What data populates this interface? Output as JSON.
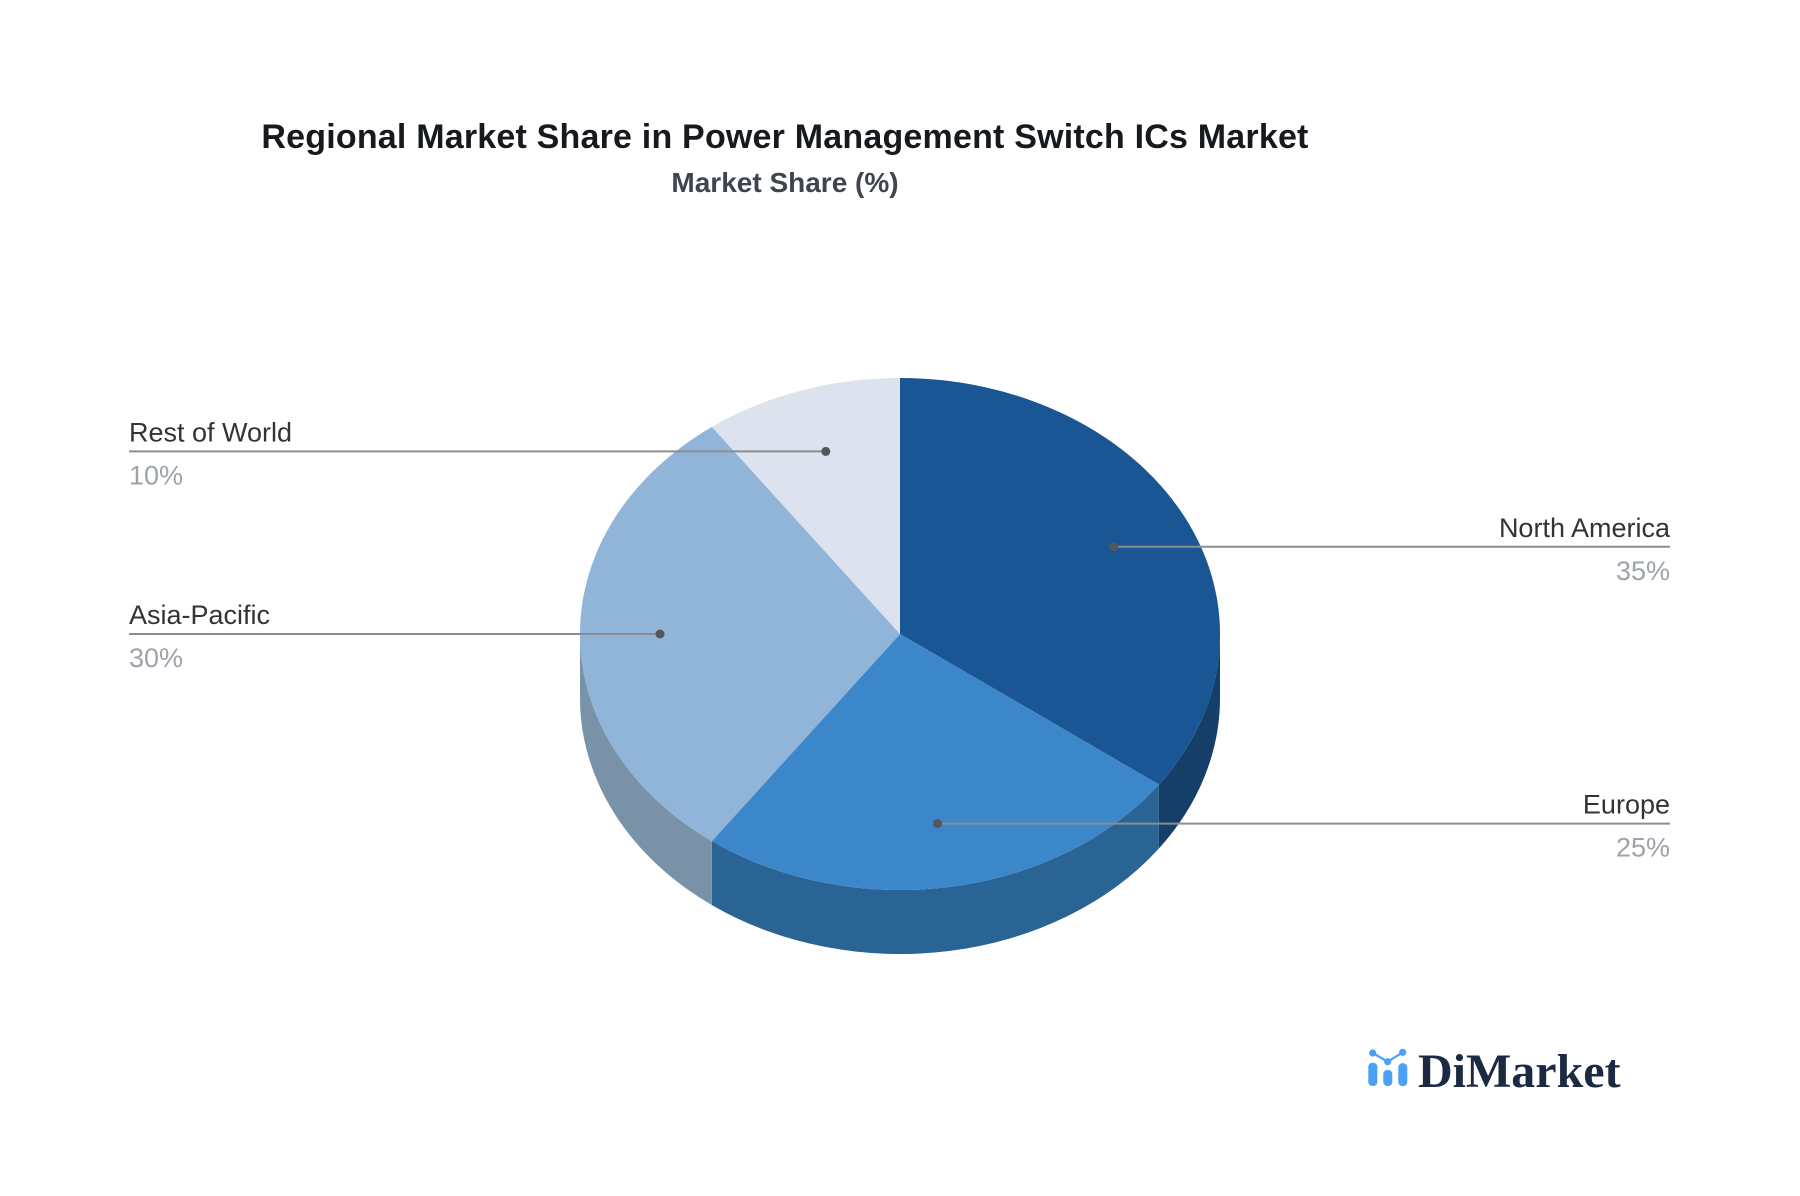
{
  "title": "Regional Market Share in Power Management Switch ICs Market",
  "subtitle": "Market Share (%)",
  "chart_data": {
    "type": "pie",
    "style": "3d",
    "start_angle_deg": 0,
    "direction": "clockwise",
    "unit": "%",
    "total": 100,
    "slices": [
      {
        "label": "North America",
        "value": 35,
        "display": "35%",
        "color": "#1B5694",
        "side_color": "#153F68",
        "label_side": "right"
      },
      {
        "label": "Europe",
        "value": 25,
        "display": "25%",
        "color": "#3B87CA",
        "side_color": "#2A6495",
        "label_side": "right"
      },
      {
        "label": "Asia-Pacific",
        "value": 30,
        "display": "30%",
        "color": "#91B4D9",
        "side_color": "#7A92A8",
        "label_side": "left"
      },
      {
        "label": "Rest of World",
        "value": 10,
        "display": "10%",
        "color": "#DDE3EE",
        "side_color": "#BCC6D4",
        "label_side": "left"
      }
    ],
    "legend": "none",
    "callouts": {
      "leader_line_color": "#8A8E92",
      "leader_dot_color": "#53575C",
      "name_color": "#303437",
      "value_color": "#9CA3AA"
    },
    "title_color": "#16191D",
    "subtitle_color": "#3E4551",
    "background_color": "#FFFFFF"
  },
  "branding": {
    "logo_text": "DiMarket",
    "logo_text_color": "#1B2A42",
    "logo_icon": "bar-chart-with-trend-dots",
    "logo_icon_color": "#4AA1F5"
  }
}
